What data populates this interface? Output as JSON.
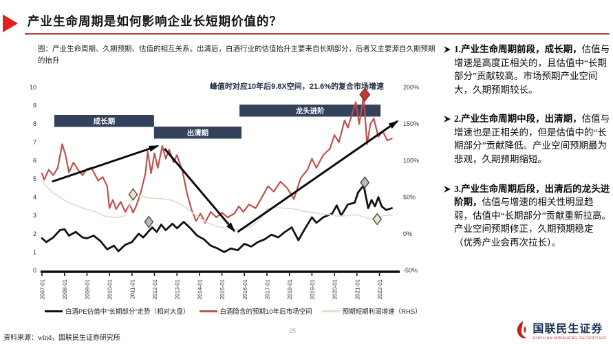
{
  "slide": {
    "title": "产业生命周期是如何影响企业长短期价值的？",
    "caption": "图：产业生命周期、久期预期、估值的相互关系。出清后，白酒行业的估值抬升主要来自长期部分，后者又主要源自久期预期的抬升",
    "page_number": "25",
    "source": "资料来源：wind，国联民生证券研究所",
    "logo": {
      "name": "国联民生证券",
      "subtitle": "GUOLIAN MINSHENG SECURITIES"
    }
  },
  "right_panel": {
    "bullets": [
      {
        "lead": "1.产业生命周期前段，成长期，",
        "text": "估值与增速是高度正相关的，且估值中“长期部分”贡献较高。市场预期产业空间大，久期预期较长。"
      },
      {
        "lead": "2.产业生命周期中段，出清期，",
        "text": "估值与增速也是正相关的，但是估值中的“长期部分”贡献降低。产业空间预期最为悲观，久期预期缩短。"
      },
      {
        "lead": "3.产业生命周期后段，出清后的龙头进阶期，",
        "text": "估值与增速的相关性明显趋弱，估值中“长期部分”贡献重新拉高。产业空间预期修正，久期预期稳定（优秀产业会再次拉长）。"
      }
    ]
  },
  "colors": {
    "accent_red": "#e01f1f",
    "phase_navy": "#33415a",
    "annotation_navy": "#1b2940",
    "axis_black": "#0b0b0b",
    "logo_navy": "#1d3154",
    "logo_red": "#c42020"
  },
  "chart_data": {
    "type": "line",
    "annotation": "峰值时对应10年后9.8X空间，21.6%的复合市场增速",
    "x_labels": [
      "2007-01",
      "2008-01",
      "2009-01",
      "2010-01",
      "2011-01",
      "2012-01",
      "2013-01",
      "2014-01",
      "2015-01",
      "2016-01",
      "2017-01",
      "2018-01",
      "2019-01",
      "2020-01",
      "2021-01",
      "2022-01"
    ],
    "x_range": [
      2007,
      2022.6
    ],
    "y_left": {
      "ticks": [
        10,
        9,
        8,
        7,
        6,
        5,
        4,
        3,
        2,
        1,
        0
      ],
      "min": 0,
      "max": 10
    },
    "y_right": {
      "ticks": [
        "200%",
        "150%",
        "100%",
        "50%",
        "0%",
        "-50%"
      ],
      "min": -50,
      "max": 200
    },
    "grid": false,
    "legend_position": "bottom",
    "phases": [
      {
        "label": "成长期",
        "from": 2007.55,
        "to": 2011.98,
        "y": 57
      },
      {
        "label": "出清期",
        "from": 2011.98,
        "to": 2015.87,
        "y": 74
      },
      {
        "label": "龙头进阶",
        "from": 2015.78,
        "to": 2022.05,
        "y": 42
      }
    ],
    "arrows": [
      {
        "from": [
          2007.45,
          4.85
        ],
        "to": [
          2012.15,
          6.8
        ]
      },
      {
        "from": [
          2012.45,
          6.65
        ],
        "to": [
          2015.55,
          2.15
        ]
      },
      {
        "from": [
          2015.7,
          2.1
        ],
        "to": [
          2022.8,
          8.15
        ]
      }
    ],
    "diamonds": [
      {
        "year": 2011.05,
        "value": 4.15,
        "fill": "#ece4c5",
        "stroke": "#4a4a42",
        "size": 7
      },
      {
        "year": 2011.75,
        "value": 2.65,
        "fill": "#b9bcbf",
        "stroke": "#45494e",
        "size": 7
      },
      {
        "year": 2021.35,
        "value": 9.6,
        "fill": "#c23b33",
        "stroke": "#8a2220",
        "size": 8
      },
      {
        "year": 2021.35,
        "value": 4.8,
        "fill": "#b9bcbf",
        "stroke": "#45494e",
        "size": 7
      },
      {
        "year": 2021.9,
        "value": 2.8,
        "fill": "#ece4c5",
        "stroke": "#4a4a42",
        "size": 7
      }
    ],
    "series": [
      {
        "name": "白酒PE估值中“长期部分”走势（相对大盘）",
        "color": "#111111",
        "axis": "left",
        "width": 2.8,
        "points": [
          [
            2007.0,
            1.75
          ],
          [
            2007.2,
            1.55
          ],
          [
            2007.5,
            1.8
          ],
          [
            2007.8,
            2.2
          ],
          [
            2008.0,
            2.25
          ],
          [
            2008.2,
            1.9
          ],
          [
            2008.5,
            2.1
          ],
          [
            2008.8,
            1.8
          ],
          [
            2009.0,
            1.75
          ],
          [
            2009.3,
            1.9
          ],
          [
            2009.6,
            1.6
          ],
          [
            2009.9,
            1.15
          ],
          [
            2010.2,
            1.35
          ],
          [
            2010.4,
            1.05
          ],
          [
            2010.7,
            1.4
          ],
          [
            2011.0,
            1.55
          ],
          [
            2011.3,
            2.0
          ],
          [
            2011.5,
            1.8
          ],
          [
            2011.9,
            2.35
          ],
          [
            2012.1,
            2.1
          ],
          [
            2012.3,
            2.5
          ],
          [
            2012.5,
            2.2
          ],
          [
            2012.8,
            2.55
          ],
          [
            2013.0,
            2.3
          ],
          [
            2013.3,
            2.65
          ],
          [
            2013.6,
            2.3
          ],
          [
            2013.9,
            1.9
          ],
          [
            2014.2,
            1.7
          ],
          [
            2014.5,
            1.35
          ],
          [
            2014.8,
            1.2
          ],
          [
            2015.1,
            1.0
          ],
          [
            2015.4,
            1.2
          ],
          [
            2015.7,
            1.1
          ],
          [
            2016.0,
            1.45
          ],
          [
            2016.3,
            1.3
          ],
          [
            2016.6,
            1.55
          ],
          [
            2016.9,
            1.7
          ],
          [
            2017.2,
            1.95
          ],
          [
            2017.5,
            1.8
          ],
          [
            2017.8,
            2.1
          ],
          [
            2018.1,
            2.35
          ],
          [
            2018.4,
            1.65
          ],
          [
            2018.7,
            2.3
          ],
          [
            2019.0,
            2.9
          ],
          [
            2019.2,
            2.6
          ],
          [
            2019.5,
            2.9
          ],
          [
            2019.9,
            3.1
          ],
          [
            2020.1,
            3.55
          ],
          [
            2020.3,
            3.0
          ],
          [
            2020.6,
            3.6
          ],
          [
            2020.9,
            3.7
          ],
          [
            2021.05,
            4.25
          ],
          [
            2021.3,
            4.65
          ],
          [
            2021.5,
            3.4
          ],
          [
            2021.65,
            3.85
          ],
          [
            2021.8,
            3.5
          ],
          [
            2021.95,
            4.0
          ],
          [
            2022.1,
            3.5
          ],
          [
            2022.3,
            3.3
          ],
          [
            2022.55,
            3.4
          ]
        ]
      },
      {
        "name": "白酒隐含的预期10年后市场空间",
        "color": "#c0504d",
        "axis": "left",
        "width": 2.2,
        "points": [
          [
            2007.0,
            5.3
          ],
          [
            2007.1,
            4.95
          ],
          [
            2007.3,
            5.5
          ],
          [
            2007.5,
            5.2
          ],
          [
            2007.7,
            5.6
          ],
          [
            2007.9,
            6.9
          ],
          [
            2008.05,
            6.3
          ],
          [
            2008.2,
            5.35
          ],
          [
            2008.4,
            5.9
          ],
          [
            2008.6,
            5.5
          ],
          [
            2008.8,
            5.2
          ],
          [
            2009.0,
            5.55
          ],
          [
            2009.2,
            5.6
          ],
          [
            2009.5,
            4.9
          ],
          [
            2009.7,
            5.1
          ],
          [
            2009.9,
            4.6
          ],
          [
            2010.0,
            3.4
          ],
          [
            2010.15,
            3.85
          ],
          [
            2010.3,
            3.35
          ],
          [
            2010.5,
            3.75
          ],
          [
            2010.7,
            3.2
          ],
          [
            2010.9,
            3.6
          ],
          [
            2011.05,
            3.15
          ],
          [
            2011.2,
            3.55
          ],
          [
            2011.4,
            4.3
          ],
          [
            2011.6,
            5.3
          ],
          [
            2011.7,
            6.5
          ],
          [
            2011.85,
            5.3
          ],
          [
            2012.0,
            6.4
          ],
          [
            2012.15,
            5.6
          ],
          [
            2012.35,
            6.8
          ],
          [
            2012.5,
            6.1
          ],
          [
            2012.65,
            6.6
          ],
          [
            2012.85,
            5.9
          ],
          [
            2013.0,
            6.3
          ],
          [
            2013.25,
            5.4
          ],
          [
            2013.45,
            4.2
          ],
          [
            2013.65,
            3.3
          ],
          [
            2013.85,
            2.7
          ],
          [
            2014.05,
            3.1
          ],
          [
            2014.25,
            2.6
          ],
          [
            2014.5,
            3.2
          ],
          [
            2014.75,
            2.9
          ],
          [
            2015.0,
            3.15
          ],
          [
            2015.25,
            2.9
          ],
          [
            2015.55,
            3.1
          ],
          [
            2015.75,
            3.5
          ],
          [
            2015.95,
            3.2
          ],
          [
            2016.2,
            3.6
          ],
          [
            2016.5,
            3.4
          ],
          [
            2016.8,
            4.05
          ],
          [
            2017.05,
            4.6
          ],
          [
            2017.3,
            4.3
          ],
          [
            2017.6,
            4.85
          ],
          [
            2017.9,
            4.5
          ],
          [
            2018.2,
            3.9
          ],
          [
            2018.5,
            5.05
          ],
          [
            2018.8,
            5.5
          ],
          [
            2019.0,
            6.1
          ],
          [
            2019.2,
            5.6
          ],
          [
            2019.5,
            6.3
          ],
          [
            2019.8,
            6.65
          ],
          [
            2020.0,
            7.4
          ],
          [
            2020.2,
            7.0
          ],
          [
            2020.45,
            8.2
          ],
          [
            2020.6,
            7.8
          ],
          [
            2020.8,
            8.6
          ],
          [
            2020.95,
            9.2
          ],
          [
            2021.1,
            8.0
          ],
          [
            2021.3,
            9.55
          ],
          [
            2021.45,
            6.9
          ],
          [
            2021.6,
            8.0
          ],
          [
            2021.75,
            8.3
          ],
          [
            2021.95,
            7.3
          ],
          [
            2022.15,
            7.6
          ],
          [
            2022.35,
            7.1
          ],
          [
            2022.55,
            7.2
          ]
        ]
      },
      {
        "name": "预期短期利润增速（RHS）",
        "color": "#e3decb",
        "axis": "right",
        "width": 1.8,
        "points": [
          [
            2007.0,
            73
          ],
          [
            2007.2,
            64
          ],
          [
            2007.5,
            56
          ],
          [
            2007.8,
            50
          ],
          [
            2008.1,
            44
          ],
          [
            2008.5,
            39
          ],
          [
            2008.9,
            34
          ],
          [
            2009.3,
            31
          ],
          [
            2009.7,
            25
          ],
          [
            2010.0,
            23
          ],
          [
            2010.4,
            22
          ],
          [
            2010.7,
            25
          ],
          [
            2010.9,
            38
          ],
          [
            2011.1,
            52
          ],
          [
            2011.4,
            51
          ],
          [
            2011.8,
            49
          ],
          [
            2012.2,
            48
          ],
          [
            2012.6,
            47
          ],
          [
            2012.9,
            44
          ],
          [
            2013.2,
            40
          ],
          [
            2013.5,
            33
          ],
          [
            2013.9,
            24
          ],
          [
            2014.3,
            16
          ],
          [
            2014.7,
            11
          ],
          [
            2015.1,
            8
          ],
          [
            2015.5,
            6
          ],
          [
            2015.9,
            7
          ],
          [
            2016.3,
            10
          ],
          [
            2016.7,
            20
          ],
          [
            2017.0,
            34
          ],
          [
            2017.4,
            36
          ],
          [
            2017.8,
            35
          ],
          [
            2018.2,
            34
          ],
          [
            2018.6,
            31
          ],
          [
            2019.0,
            29
          ],
          [
            2019.4,
            27
          ],
          [
            2019.8,
            26
          ],
          [
            2020.2,
            24
          ],
          [
            2020.6,
            25
          ],
          [
            2021.0,
            26
          ],
          [
            2021.3,
            23
          ],
          [
            2021.6,
            20
          ],
          [
            2021.9,
            21
          ],
          [
            2022.2,
            25
          ],
          [
            2022.55,
            25
          ]
        ]
      }
    ]
  }
}
